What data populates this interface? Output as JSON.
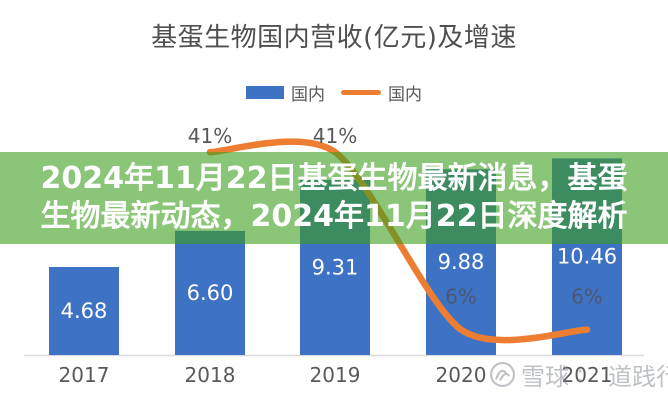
{
  "title": "基蛋生物国内营收(亿元)及增速",
  "legend": {
    "bar_label": "国内",
    "line_label": "国内"
  },
  "overlay": {
    "line1": "2024年11月22日基蛋生物最新消息，基蛋",
    "line2": "生物最新动态，2024年11月22日深度解析",
    "background_rgba": "rgba(60,158,30,0.60)",
    "text_color": "#ffffff"
  },
  "watermark": {
    "logo": "snowball-circle-icon",
    "brand": "雪球",
    "separator": ":",
    "handle_visible": "道践行",
    "color": "#7e858e"
  },
  "chart_data": {
    "type": "bar+line",
    "categories": [
      "2017",
      "2018",
      "2019",
      "2020",
      "2021"
    ],
    "series": [
      {
        "name": "国内",
        "type": "bar",
        "unit": "亿元",
        "values": [
          4.68,
          6.6,
          9.31,
          9.88,
          10.46
        ],
        "value_labels": [
          "4.68",
          "6.60",
          "9.31",
          "9.88",
          "10.46"
        ],
        "color": "#3E72C4",
        "label_color": "#ffffff"
      },
      {
        "name": "国内",
        "type": "line",
        "unit": "%",
        "values": [
          null,
          41,
          41,
          6,
          6
        ],
        "value_labels": [
          null,
          "41%",
          "41%",
          "6%",
          "6%"
        ],
        "color": "#ED7D31",
        "label_color_high": "#595959",
        "label_color_low": "#4b5872"
      }
    ],
    "title": "基蛋生物国内营收(亿元)及增速",
    "legend_position": "top",
    "gridlines": false,
    "x_axis_label_color": "#595959",
    "baseline_axis_color": "#d9d9d9",
    "ylim_bar": [
      0,
      11
    ],
    "ylim_pct": [
      0,
      45
    ]
  }
}
